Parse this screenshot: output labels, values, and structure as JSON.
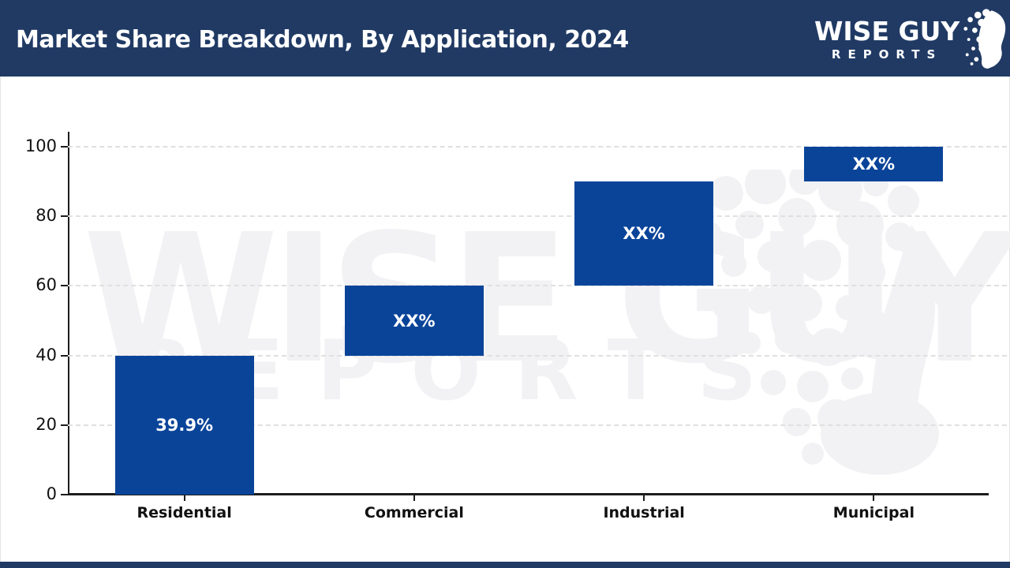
{
  "header": {
    "logo": {
      "line1": "WISE GUY",
      "line2": "REPORTS"
    }
  },
  "watermark": {
    "line1": "WISE GUY",
    "line2": "REPORTS"
  },
  "icons": {
    "logo_head": "dotted-head-profile",
    "watermark_head": "dotted-head-profile"
  },
  "colors": {
    "header_bg": "#203a64",
    "footer_bg": "#203a64",
    "bar": "#0a4499",
    "bar_label": "#ffffff",
    "axis": "#1c1c1c",
    "grid": "#e0e0e0",
    "watermark": "#f2f2f4"
  },
  "chart_data": {
    "type": "bar",
    "subtype": "waterfall",
    "title": "Market Share Breakdown, By Application, 2024",
    "xlabel": "",
    "ylabel": "",
    "categories": [
      "Residential",
      "Commercial",
      "Industrial",
      "Municipal"
    ],
    "segments": [
      {
        "category": "Residential",
        "start": 0,
        "end": 39.9,
        "label": "39.9%"
      },
      {
        "category": "Commercial",
        "start": 39.9,
        "end": 60,
        "label": "XX%"
      },
      {
        "category": "Industrial",
        "start": 60,
        "end": 90,
        "label": "XX%"
      },
      {
        "category": "Municipal",
        "start": 90,
        "end": 100,
        "label": "XX%"
      }
    ],
    "ylim": [
      0,
      100
    ],
    "yticks": [
      0,
      20,
      40,
      60,
      80,
      100
    ],
    "grid": "horizontal-dashed",
    "legend": "none",
    "bar_color": "#0a4499",
    "bar_label_color": "#ffffff"
  }
}
